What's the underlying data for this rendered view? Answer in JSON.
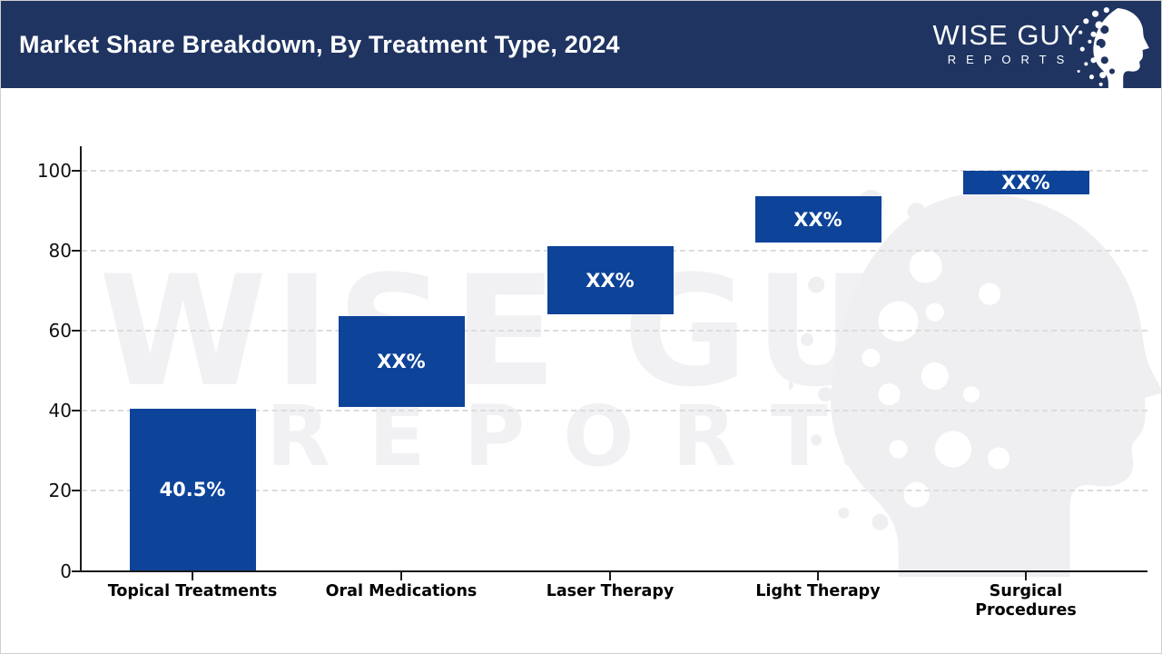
{
  "brand": {
    "name": "WISE GUY",
    "subtitle": "REPORTS"
  },
  "watermark": {
    "line1": "WISE GUY",
    "line2": "REPORTS"
  },
  "colors": {
    "header_bg": "#1f3461",
    "bar": "#0d4399",
    "grid": "#dcdcdc",
    "axis": "#1a1a1a",
    "watermark": "#f1f1f4"
  },
  "chart_data": {
    "type": "bar",
    "subtype": "waterfall",
    "title": "Market Share Breakdown, By Treatment Type, 2024",
    "categories": [
      "Topical Treatments",
      "Oral Medications",
      "Laser Therapy",
      "Light Therapy",
      "Surgical\nProcedures"
    ],
    "segments": [
      {
        "category": "Topical Treatments",
        "start": 0,
        "end": 40.5,
        "label": "40.5%"
      },
      {
        "category": "Oral Medications",
        "start": 41,
        "end": 63.5,
        "label": "XX%"
      },
      {
        "category": "Laser Therapy",
        "start": 64,
        "end": 81,
        "label": "XX%"
      },
      {
        "category": "Light Therapy",
        "start": 82,
        "end": 93.5,
        "label": "XX%"
      },
      {
        "category": "Surgical\nProcedures",
        "start": 94,
        "end": 100,
        "label": "XX%"
      }
    ],
    "xlabel": "",
    "ylabel": "",
    "yticks": [
      0,
      20,
      40,
      60,
      80,
      100
    ],
    "ylim": [
      0,
      106
    ],
    "grid": "horizontal-dashed",
    "legend": "none",
    "bar_color": "#0d4399",
    "value_label_color": "#ffffff"
  }
}
